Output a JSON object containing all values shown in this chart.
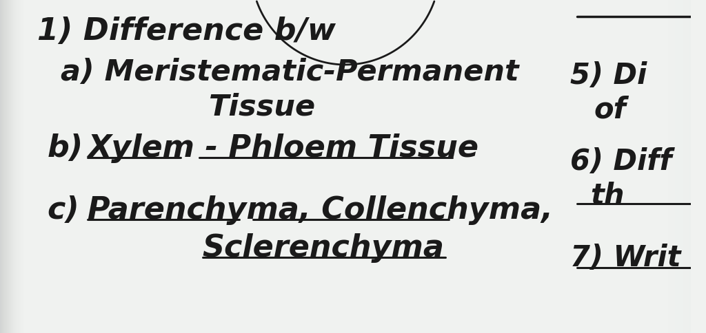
{
  "background_color": "#f0f2f0",
  "text_color": "#1a1a1a",
  "title": "1) Difference b/w",
  "line_a1": "a) Meristematic-Permanent",
  "line_a2": "Tissue",
  "line_b_prefix": "b)",
  "line_b_main": "Xylem - Phloem Tissue",
  "line_c_prefix": "c)",
  "line_c_main": "Parenchyma, Collenchyma,",
  "line_c2": "Sclerenchyma",
  "right_5a": "5) Di",
  "right_5b": "of",
  "right_6a": "6) Diff",
  "right_6b": "th",
  "right_7": "7) Writ",
  "font_size_main": 32,
  "font_size_right": 30
}
